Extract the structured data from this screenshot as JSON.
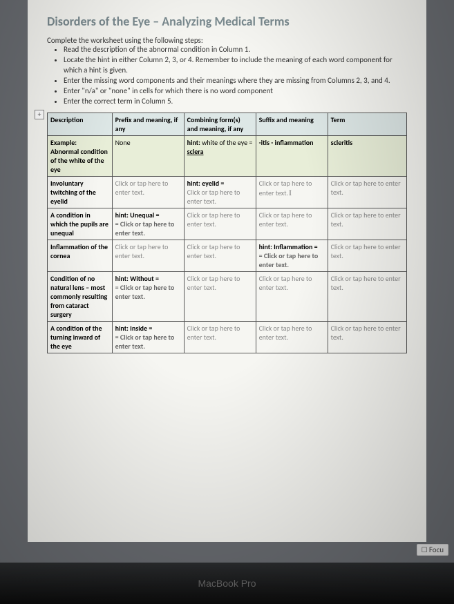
{
  "title": "Disorders of the Eye – Analyzing Medical Terms",
  "instructions_lead": "Complete the worksheet using the following steps:",
  "instructions": [
    "Read the description of the abnormal condition in Column 1.",
    "Locate the hint in either Column 2, 3, or 4.  Remember to include the meaning of each word component for which a hint is given.",
    "Enter the missing word components and their meanings where they are missing from Columns 2, 3, and 4.",
    "Enter \"n/a\" or \"none\" in cells for which there is no word component",
    "Enter the correct term in Column 5."
  ],
  "headers": {
    "c1": "Description",
    "c2": "Prefix and meaning, if any",
    "c3": "Combining form(s) and meaning, if any",
    "c4": "Suffix and meaning",
    "c5": "Term"
  },
  "example": {
    "label": "Example:",
    "desc": "Abnormal condition of the white of the eye",
    "prefix": "None",
    "combining_hint": "hint:",
    "combining_text": " white of the eye = ",
    "combining_answer": "sclera",
    "suffix": "-itis - inflammation",
    "term": "scleritis"
  },
  "placeholder": "Click or tap here to enter text.",
  "placeholder_eq": "= Click or tap here to enter text.",
  "rows": [
    {
      "desc": "Involuntary twitching of the eyelid",
      "prefix_hint": "",
      "combining_hint": "hint: eyelid =",
      "suffix_hint": "",
      "has_cursor_suffix": true
    },
    {
      "desc": "A condition in which the pupils are unequal",
      "prefix_hint": "hint: Unequal =",
      "combining_hint": "",
      "suffix_hint": ""
    },
    {
      "desc": "Inflammation of the cornea",
      "prefix_hint": "",
      "combining_hint": "",
      "suffix_hint": "hint: Inflammation ="
    },
    {
      "desc": "Condition of no natural lens – most commonly resulting from cataract surgery",
      "prefix_hint": "hint: Without =",
      "combining_hint": "",
      "suffix_hint": ""
    },
    {
      "desc": "A condition of the turning inward of the eye",
      "prefix_hint": "hint: Inside =",
      "combining_hint": "",
      "suffix_hint": ""
    }
  ],
  "laptop_text": "MacBook Pro",
  "focus_label": "Focu"
}
